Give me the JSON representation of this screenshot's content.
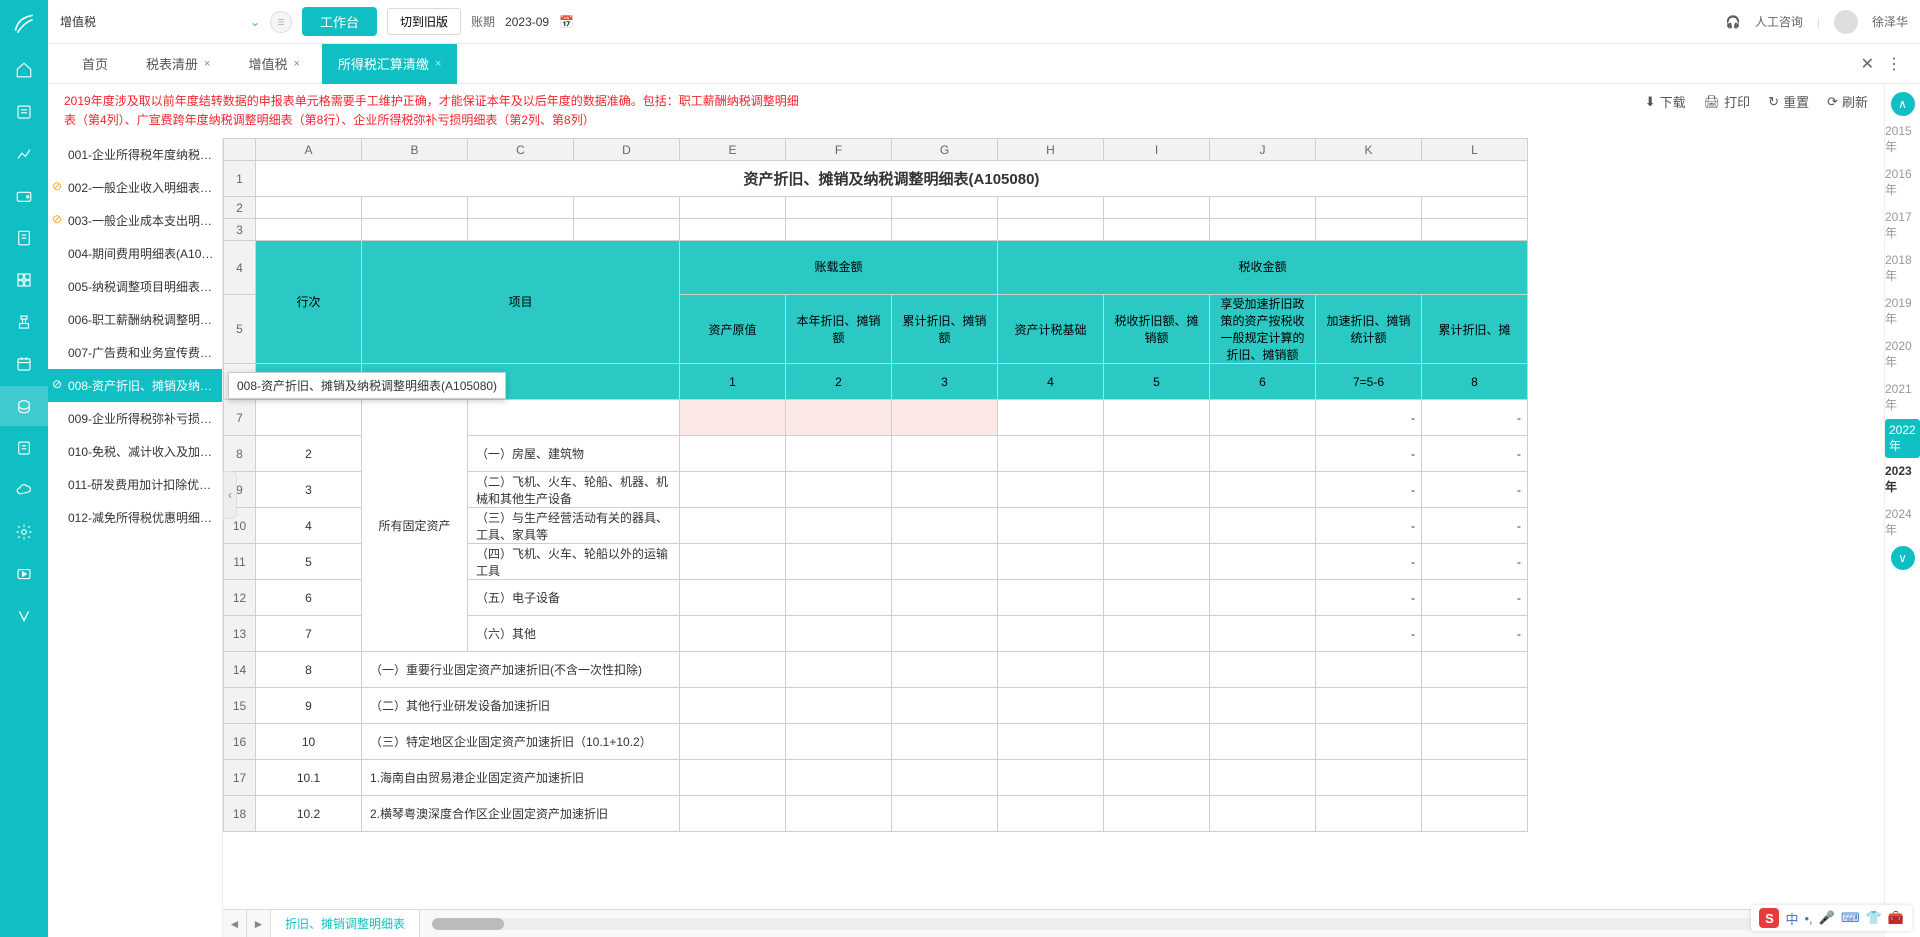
{
  "header": {
    "tax_select": "增值税",
    "workspace_btn": "工作台",
    "switch_old": "切到旧版",
    "period_label": "账期",
    "period_value": "2023-09",
    "consult": "人工咨询",
    "username": "徐泽华"
  },
  "tabs": [
    {
      "label": "首页",
      "closable": false,
      "active": false
    },
    {
      "label": "税表清册",
      "closable": true,
      "active": false
    },
    {
      "label": "增值税",
      "closable": true,
      "active": false
    },
    {
      "label": "所得税汇算清缴",
      "closable": true,
      "active": true
    }
  ],
  "notice": "2019年度涉及取以前年度结转数据的申报表单元格需要手工维护正确，才能保证本年及以后年度的数据准确。包括：职工薪酬纳税调整明细表（第4列）、广宣费跨年度纳税调整明细表（第8行）、企业所得税弥补亏损明细表（第2列、第8列）",
  "actions": {
    "download": "下载",
    "print": "打印",
    "reset": "重置",
    "refresh": "刷新"
  },
  "form_list": [
    {
      "label": "001-企业所得税年度纳税申...",
      "warn": false
    },
    {
      "label": "002-一般企业收入明细表(A1...",
      "warn": true
    },
    {
      "label": "003-一般企业成本支出明细...",
      "warn": true
    },
    {
      "label": "004-期间费用明细表(A1040...",
      "warn": false
    },
    {
      "label": "005-纳税调整项目明细表(A1...",
      "warn": false
    },
    {
      "label": "006-职工薪酬纳税调整明细...",
      "warn": false
    },
    {
      "label": "007-广告费和业务宣传费跨...",
      "warn": false
    },
    {
      "label": "008-资产折旧、摊销及纳税...",
      "warn": true,
      "active": true
    },
    {
      "label": "009-企业所得税弥补亏损明...",
      "warn": false
    },
    {
      "label": "010-免税、减计收入及加计...",
      "warn": false
    },
    {
      "label": "011-研发费用加计扣除优惠...",
      "warn": false
    },
    {
      "label": "012-减免所得税优惠明细表(...",
      "warn": false
    }
  ],
  "tooltip": "008-资产折旧、摊销及纳税调整明细表(A105080)",
  "sheet": {
    "title": "资产折旧、摊销及纳税调整明细表(A105080)",
    "col_letters": [
      "A",
      "B",
      "C",
      "D",
      "E",
      "F",
      "G",
      "H",
      "I",
      "J",
      "K",
      "L"
    ],
    "header_groups": {
      "book": "账载金额",
      "tax": "税收金额"
    },
    "header1": {
      "row_no": "行次",
      "item": "项目"
    },
    "cols": [
      "资产原值",
      "本年折旧、摊销额",
      "累计折旧、摊销额",
      "资产计税基础",
      "税收折旧额、摊销额",
      "享受加速折旧政策的资产按税收一般规定计算的折旧、摊销额",
      "加速折旧、摊销统计额",
      "累计折旧、摊"
    ],
    "col_nums": [
      "1",
      "2",
      "3",
      "4",
      "5",
      "6",
      "7=5-6",
      "8"
    ],
    "rows": [
      {
        "rn": "7",
        "a": "",
        "item": ""
      },
      {
        "rn": "8",
        "a": "2",
        "item": "（一）房屋、建筑物"
      },
      {
        "rn": "9",
        "a": "3",
        "item": "（二）飞机、火车、轮船、机器、机械和其他生产设备"
      },
      {
        "rn": "10",
        "a": "4",
        "item": "（三）与生产经营活动有关的器具、工具、家具等"
      },
      {
        "rn": "11",
        "a": "5",
        "item": "（四）飞机、火车、轮船以外的运输工具"
      },
      {
        "rn": "12",
        "a": "6",
        "item": "（五）电子设备"
      },
      {
        "rn": "13",
        "a": "7",
        "item": "（六）其他"
      },
      {
        "rn": "14",
        "a": "8",
        "item": "（一）重要行业固定资产加速折旧(不含一次性扣除)"
      },
      {
        "rn": "15",
        "a": "9",
        "item": "（二）其他行业研发设备加速折旧"
      },
      {
        "rn": "16",
        "a": "10",
        "item": "（三）特定地区企业固定资产加速折旧（10.1+10.2）"
      },
      {
        "rn": "17",
        "a": "10.1",
        "item": "1.海南自由贸易港企业固定资产加速折旧"
      },
      {
        "rn": "18",
        "a": "10.2",
        "item": "2.横琴粤澳深度合作区企业固定资产加速折旧"
      }
    ],
    "category_label": "所有固定资产",
    "bottom_tab": "折旧、摊销调整明细表"
  },
  "years": [
    "2015年",
    "2016年",
    "2017年",
    "2018年",
    "2019年",
    "2020年",
    "2021年",
    "2022年",
    "2023年",
    "2024年"
  ],
  "active_year": "2022年",
  "current_year": "2023年",
  "ime": {
    "lang": "中"
  }
}
